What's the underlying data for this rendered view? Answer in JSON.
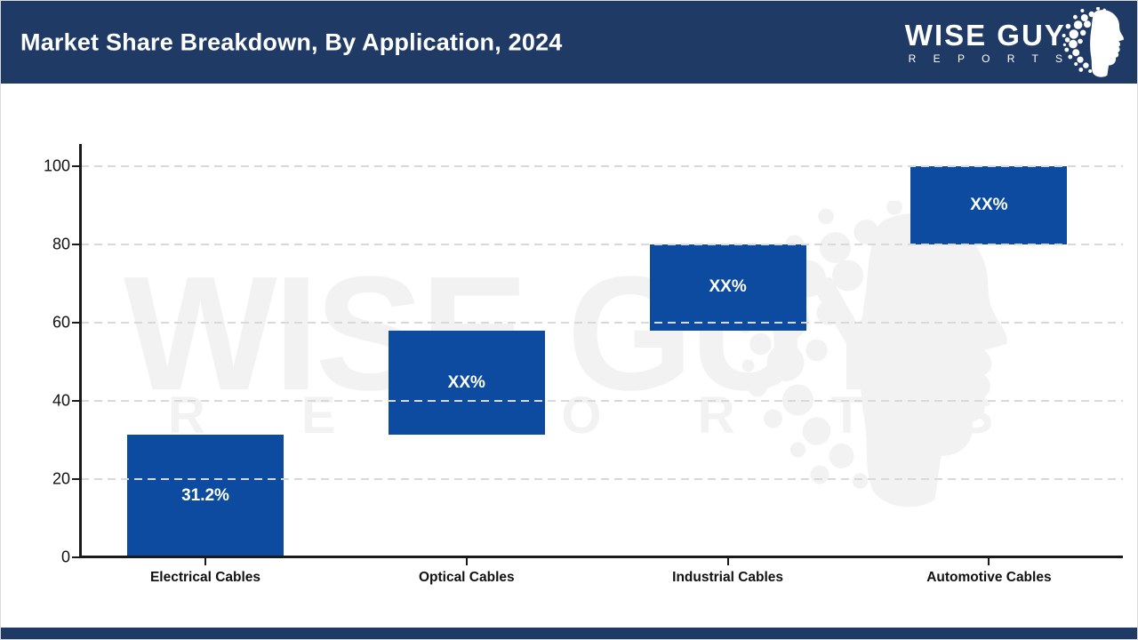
{
  "header": {
    "title": "Market Share Breakdown, By Application, 2024",
    "bg_color": "#203a66",
    "logo": {
      "line1": "WISE GUY",
      "line2": "R E P O R T S"
    }
  },
  "watermark": {
    "line1": "WISE GUY",
    "line2": "R E P O R T S"
  },
  "chart_data": {
    "type": "bar",
    "subtype": "waterfall",
    "title": "Market Share Breakdown, By Application, 2024",
    "xlabel": "",
    "ylabel": "",
    "categories": [
      "Electrical Cables",
      "Optical Cables",
      "Industrial Cables",
      "Automotive Cables"
    ],
    "segments": [
      {
        "category": "Electrical Cables",
        "start": 0,
        "end": 31.2,
        "label": "31.2%"
      },
      {
        "category": "Optical Cables",
        "start": 31.2,
        "end": 58,
        "label": "XX%"
      },
      {
        "category": "Industrial Cables",
        "start": 58,
        "end": 80,
        "label": "XX%"
      },
      {
        "category": "Automotive Cables",
        "start": 80,
        "end": 100,
        "label": "XX%"
      }
    ],
    "yticks": [
      0,
      20,
      40,
      60,
      80,
      100
    ],
    "ylim": [
      0,
      105
    ],
    "bar_color": "#0c4ba0",
    "grid": true,
    "gridline_style": "dashed",
    "legend": false
  },
  "colors": {
    "header_bg": "#203a66",
    "bar_blue": "#0c4ba0",
    "watermark_gray": "#f2f2f2",
    "axis_black": "#1a1a1a",
    "grid_gray": "#d9d9d9"
  }
}
